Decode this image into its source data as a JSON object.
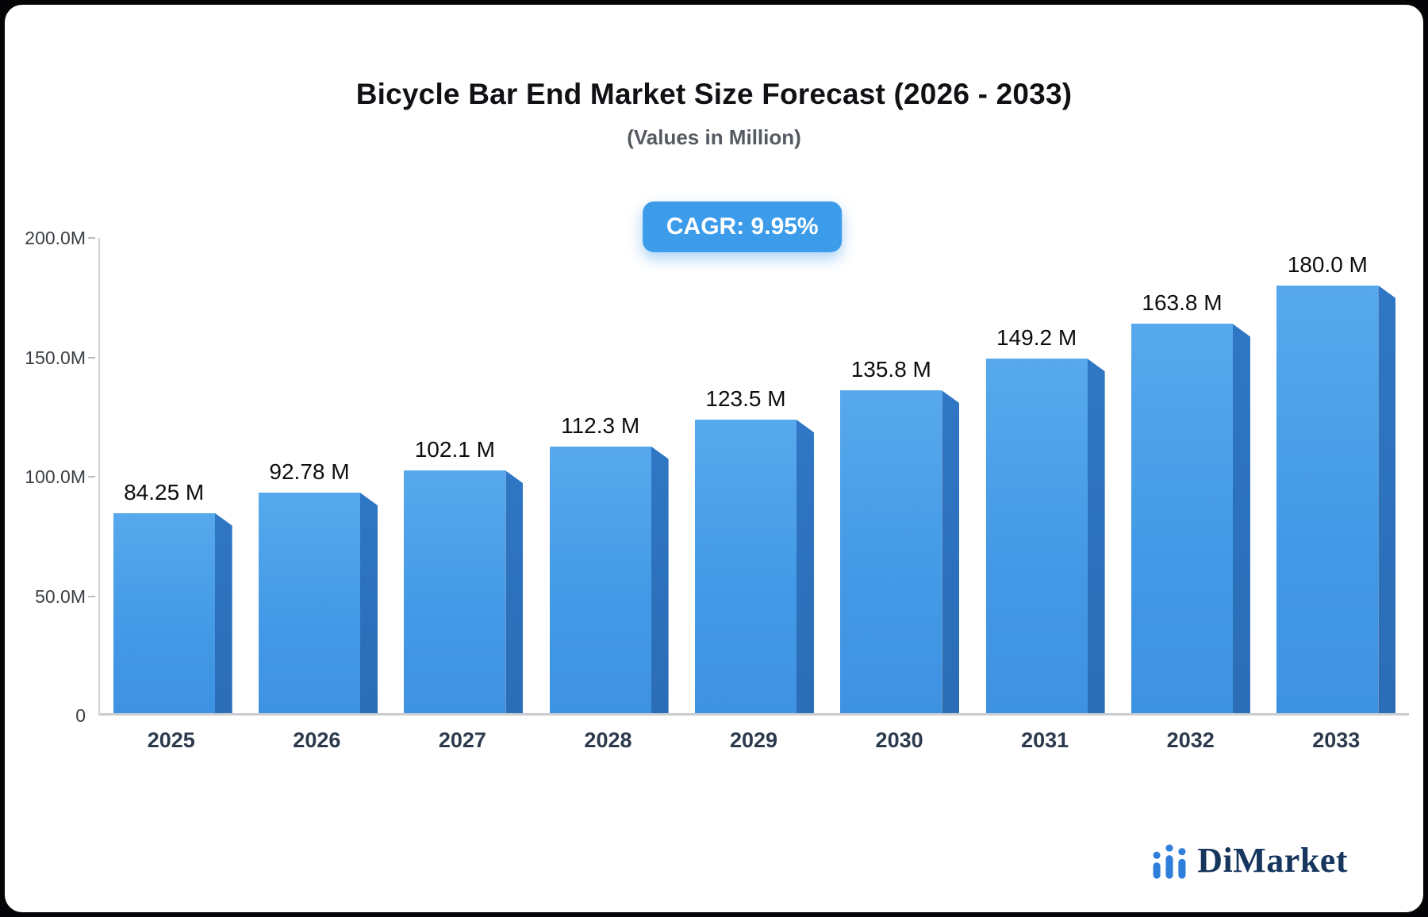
{
  "page": {
    "background_color": "#050507",
    "card_color": "#ffffff"
  },
  "chart_data": {
    "type": "bar",
    "title": "Bicycle Bar End Market Size Forecast (2026 - 2033)",
    "subtitle": "(Values in Million)",
    "badge_label": "CAGR: 9.95%",
    "categories": [
      "2025",
      "2026",
      "2027",
      "2028",
      "2029",
      "2030",
      "2031",
      "2032",
      "2033"
    ],
    "values": [
      84.25,
      92.78,
      102.1,
      112.3,
      123.5,
      135.8,
      149.2,
      163.8,
      180.0
    ],
    "value_labels": [
      "84.25 M",
      "92.78 M",
      "102.1 M",
      "112.3 M",
      "123.5 M",
      "135.8 M",
      "149.2 M",
      "163.8 M",
      "180.0 M"
    ],
    "xlabel": "",
    "ylabel": "",
    "ylim": [
      0,
      200
    ],
    "ytick_values": [
      200,
      150,
      100,
      50,
      0
    ],
    "ytick_labels": [
      "200.0M",
      "150.0M",
      "100.0M",
      "50.0M",
      "0"
    ],
    "grid": false,
    "legend": "none",
    "bar_color_top": "#57a9ec",
    "bar_color_bottom": "#3e92e2",
    "bar_side_color": "#2b6db6",
    "badge_color": "#3d9cea"
  },
  "branding": {
    "logo_text": "DiMarket",
    "logo_icon": "bar-chart-icon",
    "logo_text_color": "#16365e",
    "logo_icon_color": "#2e7fd9"
  }
}
